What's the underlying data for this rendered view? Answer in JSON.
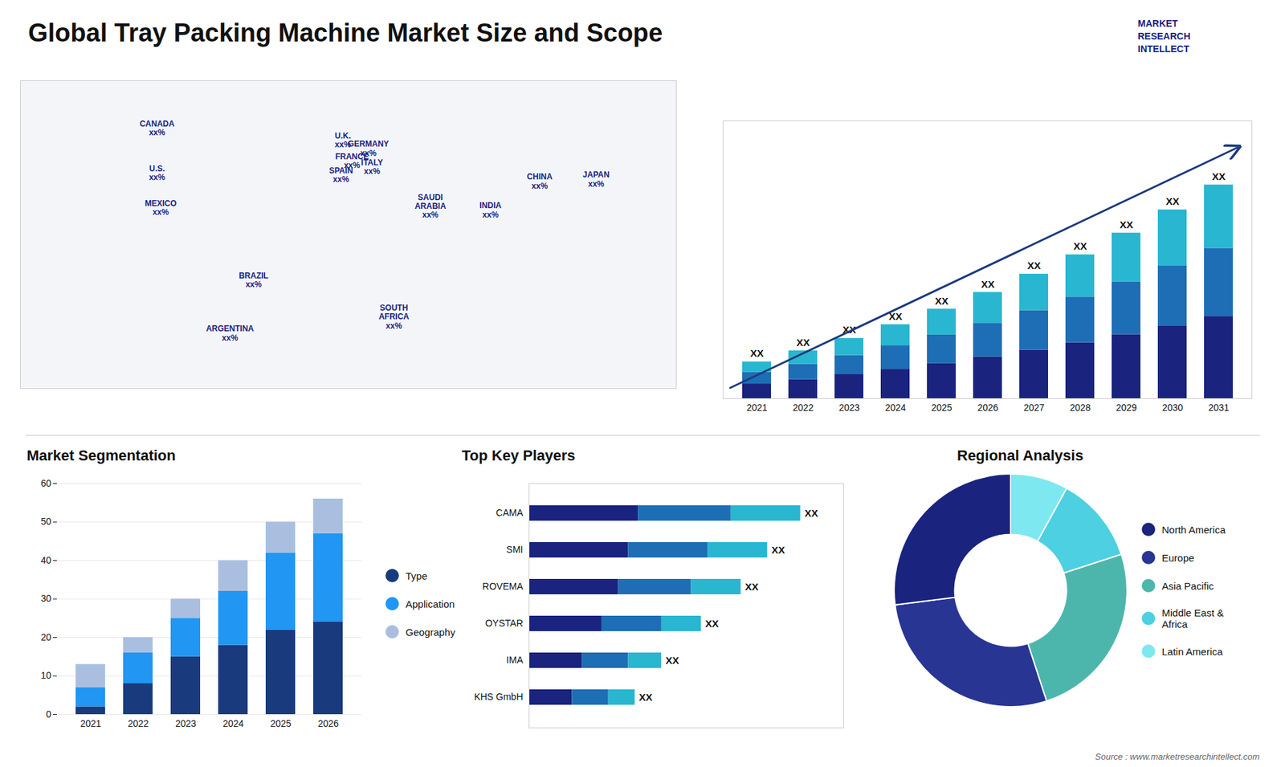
{
  "chart_data": [
    {
      "type": "map",
      "title": "Global Tray Packing Machine Market Size and Scope",
      "categories": [
        "CANADA\nxx%",
        "U.S.\nxx%",
        "MEXICO\nxx%",
        "BRAZIL\nxx%",
        "ARGENTINA\nxx%",
        "U.K.\nxx%",
        "FRANCE\nxx%",
        "SPAIN\nxx%",
        "GERMANY\nxx%",
        "ITALY\nxx%",
        "SAUDI\nARABIA\nxx%",
        "SOUTH\nAFRICA\nxx%",
        "CHINA\nxx%",
        "JAPAN\nxx%",
        "INDIA\nxx%"
      ],
      "x": [
        -105,
        -105,
        -103,
        -52,
        -65,
        -3,
        2,
        -4,
        11,
        13,
        45,
        25,
        105,
        136,
        78
      ],
      "y": [
        62,
        40,
        23,
        -12,
        -38,
        56,
        46,
        39,
        52,
        43,
        24,
        -30,
        36,
        37,
        22
      ],
      "xlim": [
        -180,
        180
      ],
      "ylim": [
        -65,
        85
      ],
      "tick_labels": false,
      "annotations": [
        "MARKET",
        "RESEARCH",
        "INTELLECT",
        "Source : www.marketresearchintellect.com"
      ]
    },
    {
      "type": "bar",
      "stacked": true,
      "categories": [
        "2021",
        "2022",
        "2023",
        "2024",
        "2025",
        "2026",
        "2027",
        "2028",
        "2029",
        "2030",
        "2031"
      ],
      "series": [
        {
          "color": "#1a237e",
          "values": [
            0.5,
            0.65,
            0.82,
            1.0,
            1.2,
            1.42,
            1.65,
            1.9,
            2.18,
            2.48,
            2.8
          ]
        },
        {
          "color": "#1e6eb5",
          "values": [
            0.4,
            0.52,
            0.65,
            0.8,
            0.97,
            1.15,
            1.35,
            1.56,
            1.8,
            2.05,
            2.32
          ]
        },
        {
          "color": "#29b6d0",
          "values": [
            0.35,
            0.46,
            0.58,
            0.72,
            0.88,
            1.05,
            1.24,
            1.44,
            1.66,
            1.9,
            2.16
          ]
        }
      ],
      "ylim": [
        0,
        9.464
      ],
      "tick_labels": "x",
      "annotations": [
        "XX",
        "XX",
        "XX",
        "XX",
        "XX",
        "XX",
        "XX",
        "XX",
        "XX",
        "XX",
        "XX"
      ]
    },
    {
      "type": "bar",
      "title": "Market Segmentation",
      "stacked": true,
      "categories": [
        "2021",
        "2022",
        "2023",
        "2024",
        "2025",
        "2026"
      ],
      "series": [
        {
          "name": "Type",
          "color": "#1a3a7e",
          "values": [
            2,
            8,
            15,
            18,
            22,
            24
          ]
        },
        {
          "name": "Application",
          "color": "#2196f3",
          "values": [
            5,
            8,
            10,
            14,
            20,
            23
          ]
        },
        {
          "name": "Geography",
          "color": "#aabfe0",
          "values": [
            6,
            4,
            5,
            8,
            8,
            9
          ]
        }
      ],
      "ylim": [
        0,
        60
      ],
      "yticks": [
        0,
        10,
        20,
        30,
        40,
        50,
        60
      ],
      "grid": true,
      "legend": "right"
    },
    {
      "type": "bar",
      "title": "Top Key Players",
      "orientation": "horizontal",
      "stacked": true,
      "categories": [
        "CAMA",
        "SMI",
        "ROVEMA",
        "OYSTAR",
        "IMA",
        "KHS GmbH"
      ],
      "series": [
        {
          "color": "#1a237e",
          "values": [
            0.33,
            0.3,
            0.27,
            0.22,
            0.16,
            0.13
          ]
        },
        {
          "color": "#1e6eb5",
          "values": [
            0.28,
            0.24,
            0.22,
            0.18,
            0.14,
            0.11
          ]
        },
        {
          "color": "#29b6d0",
          "values": [
            0.21,
            0.18,
            0.15,
            0.12,
            0.1,
            0.08
          ]
        }
      ],
      "xlim": [
        0,
        0.95
      ],
      "tick_labels": "y",
      "annotations": [
        "XX",
        "XX",
        "XX",
        "XX",
        "XX",
        "XX"
      ]
    },
    {
      "type": "donut",
      "title": "Regional Analysis",
      "categories": [
        "Latin America",
        "Middle East &\nAfrica",
        "Asia Pacific",
        "Europe",
        "North America"
      ],
      "values": [
        8,
        12,
        25,
        28,
        27
      ],
      "colors": [
        "#7de8f0",
        "#4dd0e1",
        "#4db6ac",
        "#283593",
        "#1a237e"
      ],
      "legend": "right"
    }
  ]
}
